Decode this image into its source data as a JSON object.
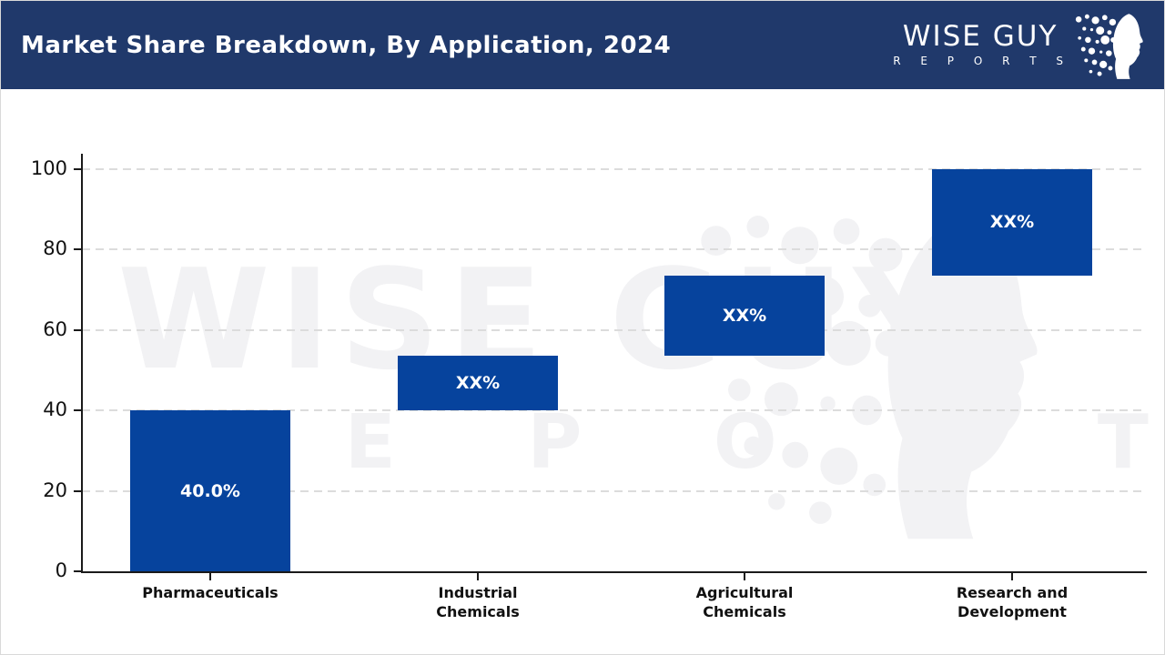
{
  "header": {
    "title": "Market Share Breakdown, By Application, 2024"
  },
  "brand": {
    "name_top": "WISE GUY",
    "name_bottom": "R E P O R T S"
  },
  "watermark": {
    "text_top": "WISE GUY",
    "text_bottom": "R E P O R T S"
  },
  "colors": {
    "header_bg": "#20396b",
    "bar": "#06439d",
    "bar_label": "#ffffff",
    "axis": "#1a1a1a",
    "grid": "#dcdcdc",
    "watermark": "#f2f2f4",
    "frame_border": "#d9d9d9"
  },
  "chart_data": {
    "type": "bar",
    "subtype": "floating-waterfall",
    "title": "Market Share Breakdown, By Application, 2024",
    "categories": [
      [
        "Pharmaceuticals"
      ],
      [
        "Industrial",
        "Chemicals"
      ],
      [
        "Agricultural",
        "Chemicals"
      ],
      [
        "Research and",
        "Development"
      ]
    ],
    "series": [
      {
        "name": "Market Share",
        "segments": [
          {
            "category": "Pharmaceuticals",
            "start": 0,
            "end": 40,
            "label": "40.0%"
          },
          {
            "category": "Industrial Chemicals",
            "start": 40,
            "end": 53.5,
            "label": "XX%"
          },
          {
            "category": "Agricultural Chemicals",
            "start": 53.5,
            "end": 73.5,
            "label": "XX%"
          },
          {
            "category": "Research and Development",
            "start": 73.5,
            "end": 100,
            "label": "XX%"
          }
        ]
      }
    ],
    "xlabel": "",
    "ylabel": "",
    "yticks": [
      0,
      20,
      40,
      60,
      80,
      100
    ],
    "ylim": [
      0,
      103
    ],
    "grid": "horizontal-dashed",
    "legend": "none"
  }
}
